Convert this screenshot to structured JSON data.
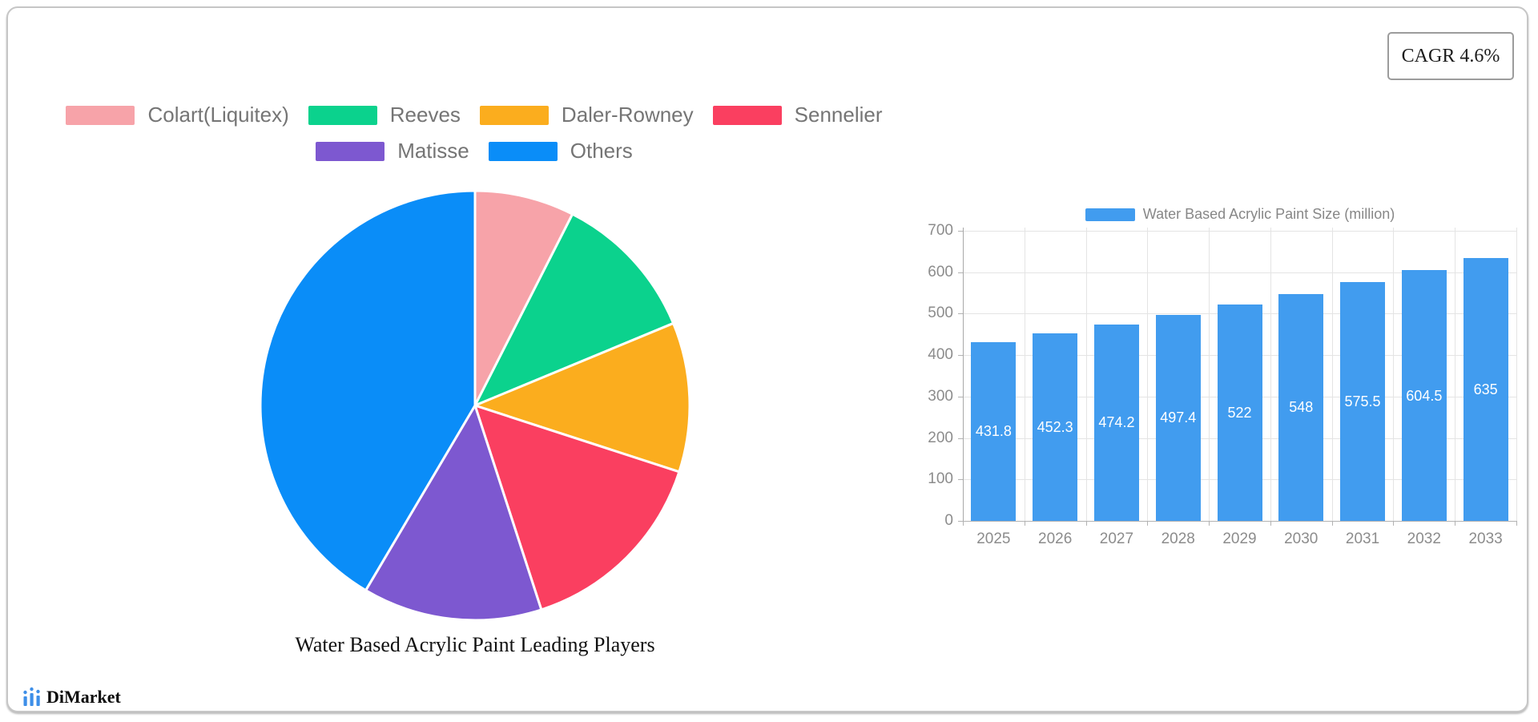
{
  "badge": {
    "cagr_label": "CAGR 4.6%"
  },
  "brand": {
    "name": "DiMarket",
    "icon": "bar-chart-icon",
    "icon_color": "#3E8FE8"
  },
  "chart_data": [
    {
      "type": "pie",
      "title": "Water Based Acrylic Paint Leading Players",
      "labels": [
        "Colart(Liquitex)",
        "Reeves",
        "Daler-Rowney",
        "Sennelier",
        "Matisse",
        "Others"
      ],
      "values": [
        7.5,
        11.25,
        11.25,
        15,
        13.5,
        41.5
      ],
      "colors": [
        "#F7A3A9",
        "#0BD28D",
        "#FBAD1E",
        "#FA3F60",
        "#7D58D0",
        "#0A8DF8"
      ],
      "legend_rows": [
        [
          0,
          1,
          2,
          3
        ],
        [
          4,
          5
        ]
      ],
      "start_angle_deg": -90,
      "direction": "clockwise",
      "slice_border_color": "#ffffff",
      "legend_position": "top"
    },
    {
      "type": "bar",
      "legend_label": "Water Based Acrylic Paint Size (million)",
      "categories": [
        "2025",
        "2026",
        "2027",
        "2028",
        "2029",
        "2030",
        "2031",
        "2032",
        "2033"
      ],
      "values": [
        431.8,
        452.3,
        474.2,
        497.4,
        522,
        548,
        575.5,
        604.5,
        635
      ],
      "value_labels": [
        "431.8",
        "452.3",
        "474.2",
        "497.4",
        "522",
        "548",
        "575.5",
        "604.5",
        "635"
      ],
      "bar_color": "#419CEF",
      "value_label_color": "#ffffff",
      "ylim": [
        0,
        700
      ],
      "yticks": [
        0,
        100,
        200,
        300,
        400,
        500,
        600,
        700
      ],
      "grid": true,
      "legend_position": "top"
    }
  ]
}
